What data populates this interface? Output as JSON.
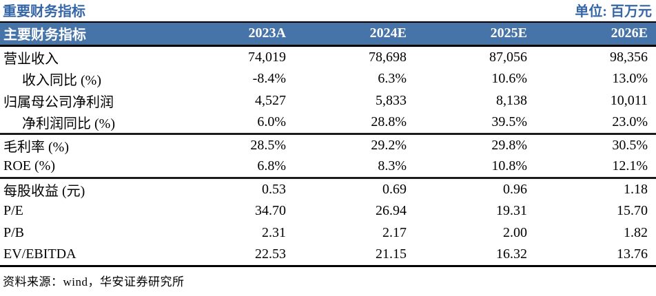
{
  "page": {
    "title": "重要财务指标",
    "unit_label": "单位: 百万元",
    "source_note": "资料来源：wind，华安证券研究所"
  },
  "table": {
    "header": [
      "主要财务指标",
      "2023A",
      "2024E",
      "2025E",
      "2026E"
    ],
    "rows": [
      {
        "label": "营业收入",
        "indent": false,
        "divider": false,
        "values": [
          "74,019",
          "78,698",
          "87,056",
          "98,356"
        ]
      },
      {
        "label": "收入同比 (%)",
        "indent": true,
        "divider": false,
        "values": [
          "-8.4%",
          "6.3%",
          "10.6%",
          "13.0%"
        ]
      },
      {
        "label": "归属母公司净利润",
        "indent": false,
        "divider": false,
        "values": [
          "4,527",
          "5,833",
          "8,138",
          "10,011"
        ]
      },
      {
        "label": "净利润同比 (%)",
        "indent": true,
        "divider": true,
        "values": [
          "6.0%",
          "28.8%",
          "39.5%",
          "23.0%"
        ]
      },
      {
        "label": "毛利率 (%)",
        "indent": false,
        "divider": false,
        "values": [
          "28.5%",
          "29.2%",
          "29.8%",
          "30.5%"
        ]
      },
      {
        "label": "ROE (%)",
        "indent": false,
        "divider": true,
        "values": [
          "6.8%",
          "8.3%",
          "10.8%",
          "12.1%"
        ]
      },
      {
        "label": "每股收益 (元)",
        "indent": false,
        "divider": false,
        "values": [
          "0.53",
          "0.69",
          "0.96",
          "1.18"
        ]
      },
      {
        "label": "P/E",
        "indent": false,
        "divider": false,
        "values": [
          "34.70",
          "26.94",
          "19.31",
          "15.70"
        ]
      },
      {
        "label": "P/B",
        "indent": false,
        "divider": false,
        "values": [
          "2.31",
          "2.17",
          "2.00",
          "1.82"
        ]
      },
      {
        "label": "EV/EBITDA",
        "indent": false,
        "divider": false,
        "values": [
          "22.53",
          "21.15",
          "16.32",
          "13.76"
        ]
      }
    ]
  },
  "colors": {
    "header_bg": "#4674A8",
    "title_blue": "#3566A8",
    "rule": "#000000"
  }
}
